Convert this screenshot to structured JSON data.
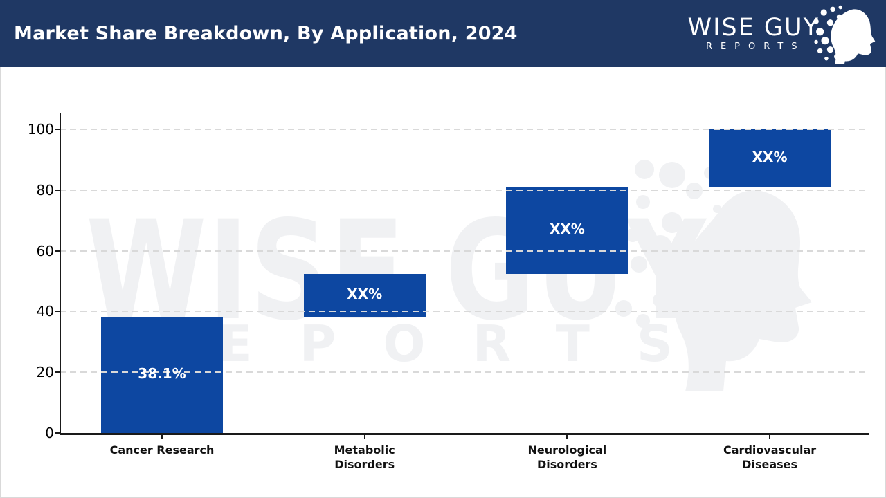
{
  "header": {
    "title": "Market Share Breakdown, By Application, 2024",
    "logo": {
      "brand": "WISE GUY",
      "sub": "REPORTS",
      "icon": "dotted-face-profile"
    }
  },
  "watermark": {
    "brand": "WISE GUY",
    "sub": "REPORTS",
    "icon": "dotted-face-profile"
  },
  "colors": {
    "header_bg": "#1f3864",
    "bar_blue": "#0d47a1",
    "gridline": "#d9d9d9",
    "axis": "#1a1a1a",
    "tick_text": "#000000",
    "category_text": "#111111",
    "bar_label_text": "#ffffff",
    "watermark": "#f0f1f3",
    "chart_border": "#d9d9d9"
  },
  "chart_data": {
    "type": "bar",
    "subtype": "waterfall",
    "title": "Market Share Breakdown, By Application, 2024",
    "categories": [
      "Cancer Research",
      "Metabolic Disorders",
      "Neurological Disorders",
      "Cardiovascular Diseases"
    ],
    "category_label_lines": [
      [
        "Cancer Research"
      ],
      [
        "Metabolic",
        "Disorders"
      ],
      [
        "Neurological",
        "Disorders"
      ],
      [
        "Cardiovascular",
        "Diseases"
      ]
    ],
    "segments": [
      {
        "category": "Cancer Research",
        "start": 0,
        "end": 38.1,
        "label": "38.1%"
      },
      {
        "category": "Metabolic Disorders",
        "start": 38.1,
        "end": 52.4,
        "label": "XX%"
      },
      {
        "category": "Neurological Disorders",
        "start": 52.4,
        "end": 80.9,
        "label": "XX%"
      },
      {
        "category": "Cardiovascular Diseases",
        "start": 80.9,
        "end": 100,
        "label": "XX%"
      }
    ],
    "ylim": [
      0,
      105
    ],
    "yticks": [
      0,
      20,
      40,
      60,
      80,
      100
    ],
    "xlabel": "",
    "ylabel": "",
    "grid": "horizontal dashed, drawn above bars",
    "legend": "none",
    "bar_color": "#0d47a1"
  }
}
